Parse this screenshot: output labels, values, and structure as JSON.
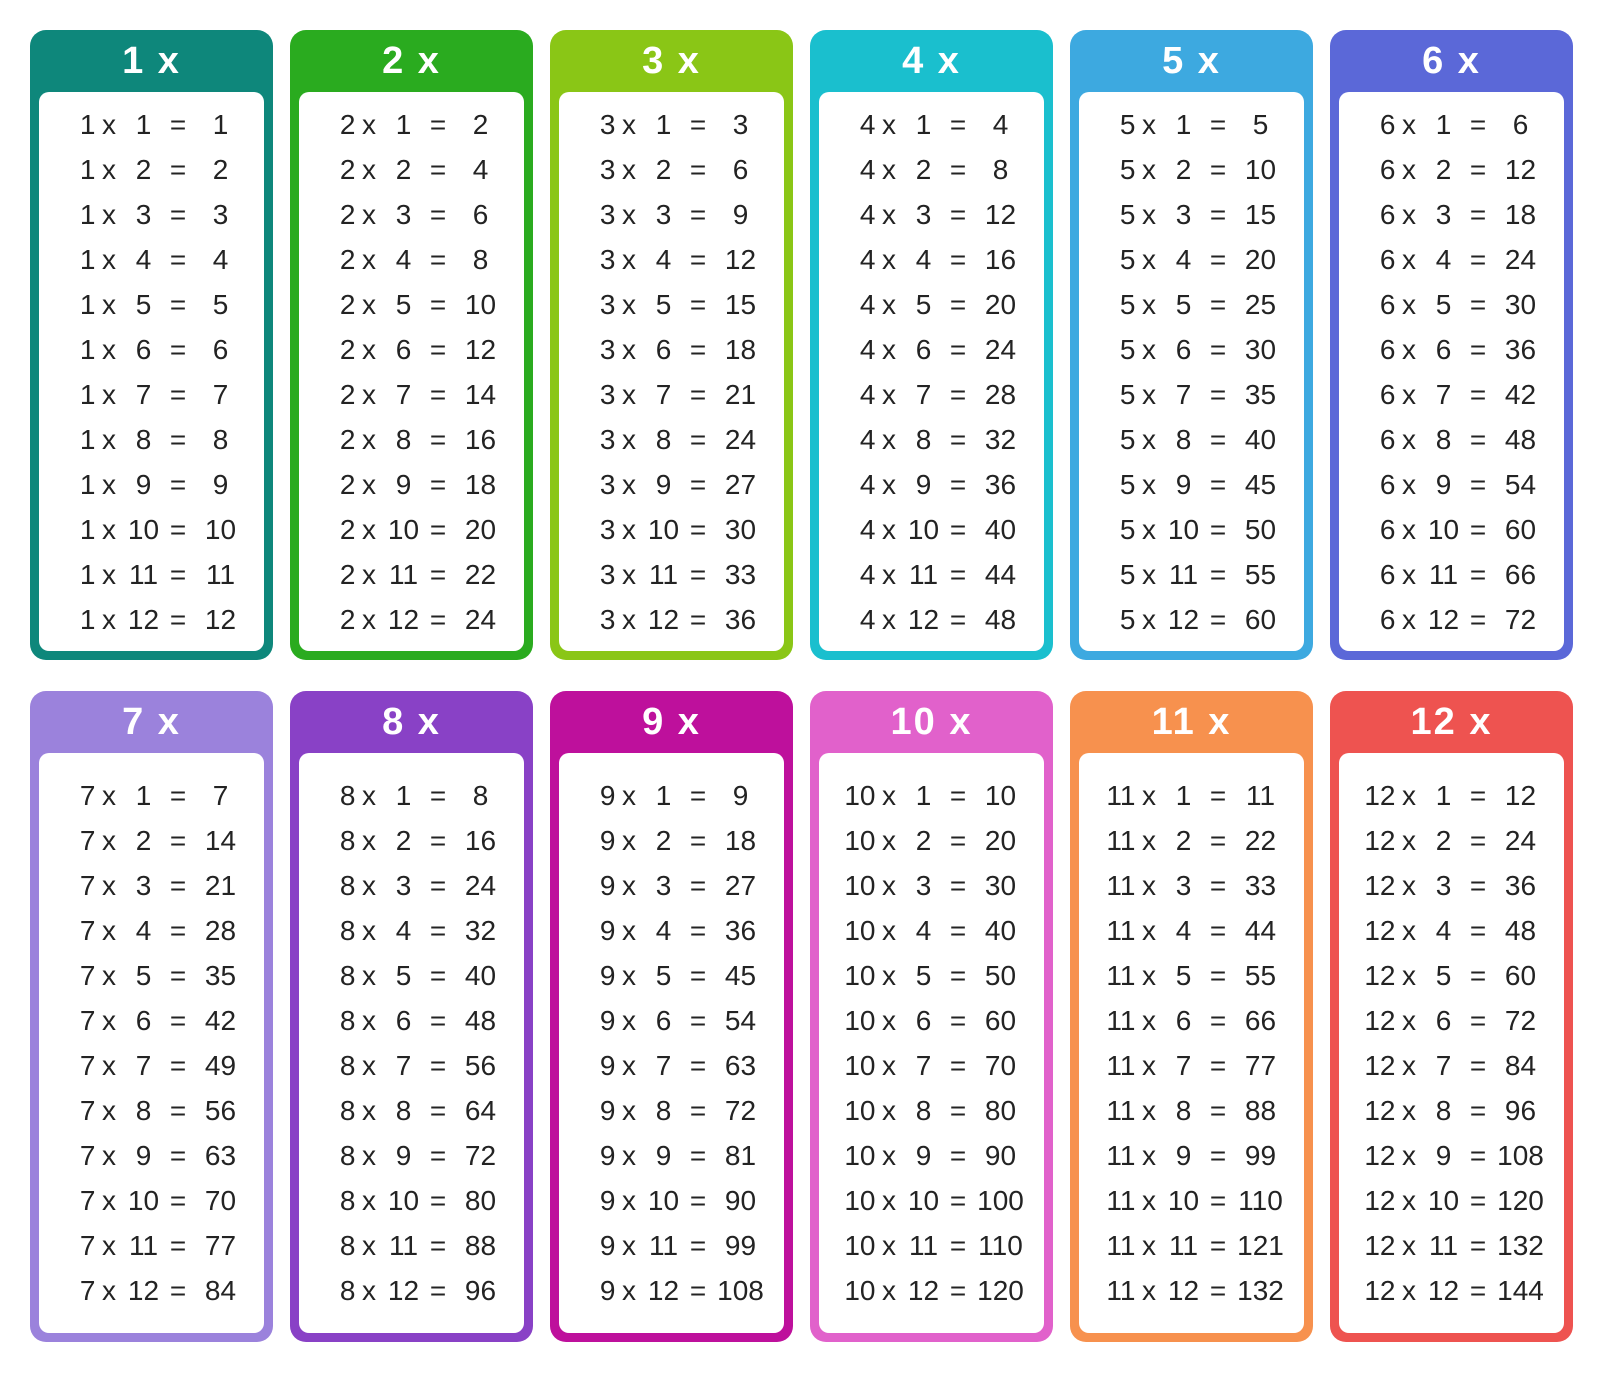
{
  "page": {
    "background": "#ffffff",
    "text_color": "#232323",
    "header_text_color": "#ffffff"
  },
  "symbols": {
    "multiply": "x",
    "equals": "="
  },
  "tables": [
    {
      "header": "1 x",
      "color": "#0E877B",
      "rows": [
        [
          "1",
          "1",
          "1"
        ],
        [
          "1",
          "2",
          "2"
        ],
        [
          "1",
          "3",
          "3"
        ],
        [
          "1",
          "4",
          "4"
        ],
        [
          "1",
          "5",
          "5"
        ],
        [
          "1",
          "6",
          "6"
        ],
        [
          "1",
          "7",
          "7"
        ],
        [
          "1",
          "8",
          "8"
        ],
        [
          "1",
          "9",
          "9"
        ],
        [
          "1",
          "10",
          "10"
        ],
        [
          "1",
          "11",
          "11"
        ],
        [
          "1",
          "12",
          "12"
        ]
      ]
    },
    {
      "header": "2 x",
      "color": "#2AAB1F",
      "rows": [
        [
          "2",
          "1",
          "2"
        ],
        [
          "2",
          "2",
          "4"
        ],
        [
          "2",
          "3",
          "6"
        ],
        [
          "2",
          "4",
          "8"
        ],
        [
          "2",
          "5",
          "10"
        ],
        [
          "2",
          "6",
          "12"
        ],
        [
          "2",
          "7",
          "14"
        ],
        [
          "2",
          "8",
          "16"
        ],
        [
          "2",
          "9",
          "18"
        ],
        [
          "2",
          "10",
          "20"
        ],
        [
          "2",
          "11",
          "22"
        ],
        [
          "2",
          "12",
          "24"
        ]
      ]
    },
    {
      "header": "3 x",
      "color": "#8AC616",
      "rows": [
        [
          "3",
          "1",
          "3"
        ],
        [
          "3",
          "2",
          "6"
        ],
        [
          "3",
          "3",
          "9"
        ],
        [
          "3",
          "4",
          "12"
        ],
        [
          "3",
          "5",
          "15"
        ],
        [
          "3",
          "6",
          "18"
        ],
        [
          "3",
          "7",
          "21"
        ],
        [
          "3",
          "8",
          "24"
        ],
        [
          "3",
          "9",
          "27"
        ],
        [
          "3",
          "10",
          "30"
        ],
        [
          "3",
          "11",
          "33"
        ],
        [
          "3",
          "12",
          "36"
        ]
      ]
    },
    {
      "header": "4 x",
      "color": "#1ABFCE",
      "rows": [
        [
          "4",
          "1",
          "4"
        ],
        [
          "4",
          "2",
          "8"
        ],
        [
          "4",
          "3",
          "12"
        ],
        [
          "4",
          "4",
          "16"
        ],
        [
          "4",
          "5",
          "20"
        ],
        [
          "4",
          "6",
          "24"
        ],
        [
          "4",
          "7",
          "28"
        ],
        [
          "4",
          "8",
          "32"
        ],
        [
          "4",
          "9",
          "36"
        ],
        [
          "4",
          "10",
          "40"
        ],
        [
          "4",
          "11",
          "44"
        ],
        [
          "4",
          "12",
          "48"
        ]
      ]
    },
    {
      "header": "5 x",
      "color": "#3DA9E0",
      "rows": [
        [
          "5",
          "1",
          "5"
        ],
        [
          "5",
          "2",
          "10"
        ],
        [
          "5",
          "3",
          "15"
        ],
        [
          "5",
          "4",
          "20"
        ],
        [
          "5",
          "5",
          "25"
        ],
        [
          "5",
          "6",
          "30"
        ],
        [
          "5",
          "7",
          "35"
        ],
        [
          "5",
          "8",
          "40"
        ],
        [
          "5",
          "9",
          "45"
        ],
        [
          "5",
          "10",
          "50"
        ],
        [
          "5",
          "11",
          "55"
        ],
        [
          "5",
          "12",
          "60"
        ]
      ]
    },
    {
      "header": "6 x",
      "color": "#5B68D8",
      "rows": [
        [
          "6",
          "1",
          "6"
        ],
        [
          "6",
          "2",
          "12"
        ],
        [
          "6",
          "3",
          "18"
        ],
        [
          "6",
          "4",
          "24"
        ],
        [
          "6",
          "5",
          "30"
        ],
        [
          "6",
          "6",
          "36"
        ],
        [
          "6",
          "7",
          "42"
        ],
        [
          "6",
          "8",
          "48"
        ],
        [
          "6",
          "9",
          "54"
        ],
        [
          "6",
          "10",
          "60"
        ],
        [
          "6",
          "11",
          "66"
        ],
        [
          "6",
          "12",
          "72"
        ]
      ]
    },
    {
      "header": "7 x",
      "color": "#9B82DC",
      "rows": [
        [
          "7",
          "1",
          "7"
        ],
        [
          "7",
          "2",
          "14"
        ],
        [
          "7",
          "3",
          "21"
        ],
        [
          "7",
          "4",
          "28"
        ],
        [
          "7",
          "5",
          "35"
        ],
        [
          "7",
          "6",
          "42"
        ],
        [
          "7",
          "7",
          "49"
        ],
        [
          "7",
          "8",
          "56"
        ],
        [
          "7",
          "9",
          "63"
        ],
        [
          "7",
          "10",
          "70"
        ],
        [
          "7",
          "11",
          "77"
        ],
        [
          "7",
          "12",
          "84"
        ]
      ]
    },
    {
      "header": "8 x",
      "color": "#8941C6",
      "rows": [
        [
          "8",
          "1",
          "8"
        ],
        [
          "8",
          "2",
          "16"
        ],
        [
          "8",
          "3",
          "24"
        ],
        [
          "8",
          "4",
          "32"
        ],
        [
          "8",
          "5",
          "40"
        ],
        [
          "8",
          "6",
          "48"
        ],
        [
          "8",
          "7",
          "56"
        ],
        [
          "8",
          "8",
          "64"
        ],
        [
          "8",
          "9",
          "72"
        ],
        [
          "8",
          "10",
          "80"
        ],
        [
          "8",
          "11",
          "88"
        ],
        [
          "8",
          "12",
          "96"
        ]
      ]
    },
    {
      "header": "9 x",
      "color": "#BE109C",
      "rows": [
        [
          "9",
          "1",
          "9"
        ],
        [
          "9",
          "2",
          "18"
        ],
        [
          "9",
          "3",
          "27"
        ],
        [
          "9",
          "4",
          "36"
        ],
        [
          "9",
          "5",
          "45"
        ],
        [
          "9",
          "6",
          "54"
        ],
        [
          "9",
          "7",
          "63"
        ],
        [
          "9",
          "8",
          "72"
        ],
        [
          "9",
          "9",
          "81"
        ],
        [
          "9",
          "10",
          "90"
        ],
        [
          "9",
          "11",
          "99"
        ],
        [
          "9",
          "12",
          "108"
        ]
      ]
    },
    {
      "header": "10 x",
      "color": "#E161CB",
      "rows": [
        [
          "10",
          "1",
          "10"
        ],
        [
          "10",
          "2",
          "20"
        ],
        [
          "10",
          "3",
          "30"
        ],
        [
          "10",
          "4",
          "40"
        ],
        [
          "10",
          "5",
          "50"
        ],
        [
          "10",
          "6",
          "60"
        ],
        [
          "10",
          "7",
          "70"
        ],
        [
          "10",
          "8",
          "80"
        ],
        [
          "10",
          "9",
          "90"
        ],
        [
          "10",
          "10",
          "100"
        ],
        [
          "10",
          "11",
          "110"
        ],
        [
          "10",
          "12",
          "120"
        ]
      ]
    },
    {
      "header": "11 x",
      "color": "#F7914E",
      "rows": [
        [
          "11",
          "1",
          "11"
        ],
        [
          "11",
          "2",
          "22"
        ],
        [
          "11",
          "3",
          "33"
        ],
        [
          "11",
          "4",
          "44"
        ],
        [
          "11",
          "5",
          "55"
        ],
        [
          "11",
          "6",
          "66"
        ],
        [
          "11",
          "7",
          "77"
        ],
        [
          "11",
          "8",
          "88"
        ],
        [
          "11",
          "9",
          "99"
        ],
        [
          "11",
          "10",
          "110"
        ],
        [
          "11",
          "11",
          "121"
        ],
        [
          "11",
          "12",
          "132"
        ]
      ]
    },
    {
      "header": "12 x",
      "color": "#EE5350",
      "rows": [
        [
          "12",
          "1",
          "12"
        ],
        [
          "12",
          "2",
          "24"
        ],
        [
          "12",
          "3",
          "36"
        ],
        [
          "12",
          "4",
          "48"
        ],
        [
          "12",
          "5",
          "60"
        ],
        [
          "12",
          "6",
          "72"
        ],
        [
          "12",
          "7",
          "84"
        ],
        [
          "12",
          "8",
          "96"
        ],
        [
          "12",
          "9",
          "108"
        ],
        [
          "12",
          "10",
          "120"
        ],
        [
          "12",
          "11",
          "132"
        ],
        [
          "12",
          "12",
          "144"
        ]
      ]
    }
  ]
}
